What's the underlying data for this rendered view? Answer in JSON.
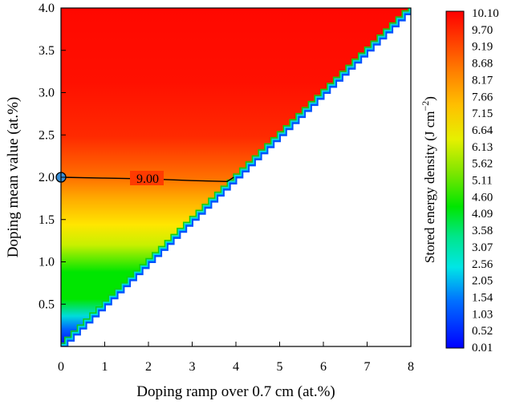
{
  "chart_data": {
    "type": "heatmap",
    "title": "",
    "xlabel": "Doping ramp over 0.7 cm (at.%)",
    "ylabel": "Doping mean value (at.%)",
    "xlim": [
      0,
      8
    ],
    "ylim": [
      0,
      4
    ],
    "x_ticks": [
      "0",
      "1",
      "2",
      "3",
      "4",
      "5",
      "6",
      "7",
      "8"
    ],
    "y_ticks": [
      "0.5",
      "1.0",
      "1.5",
      "2.0",
      "2.5",
      "3.0",
      "3.5",
      "4.0"
    ],
    "valid_region": "y >= x / 2",
    "colorbar": {
      "title_main": "Stored energy density (J cm",
      "title_sup": "−2",
      "title_end": ")",
      "range": [
        0.01,
        10.1
      ],
      "labels": [
        "10.10",
        "9.70",
        "9.19",
        "8.68",
        "8.17",
        "7.66",
        "7.15",
        "6.64",
        "6.13",
        "5.62",
        "5.11",
        "4.60",
        "4.09",
        "3.58",
        "3.07",
        "2.56",
        "2.05",
        "1.54",
        "1.03",
        "0.52",
        "0.01"
      ],
      "colors": [
        "#ff0000",
        "#ff6a00",
        "#ffd000",
        "#00e600",
        "#00e6c8",
        "#0060ff",
        "#0000ff"
      ]
    },
    "contours": [
      {
        "label": "9.00",
        "points": [
          [
            0,
            2.0
          ],
          [
            1.0,
            1.99
          ],
          [
            2.0,
            1.98
          ],
          [
            3.0,
            1.96
          ],
          [
            3.8,
            1.95
          ],
          [
            3.95,
            2.0
          ]
        ]
      }
    ],
    "marker": {
      "x": 0,
      "y": 2.0,
      "color": "#3a8fd6"
    }
  }
}
